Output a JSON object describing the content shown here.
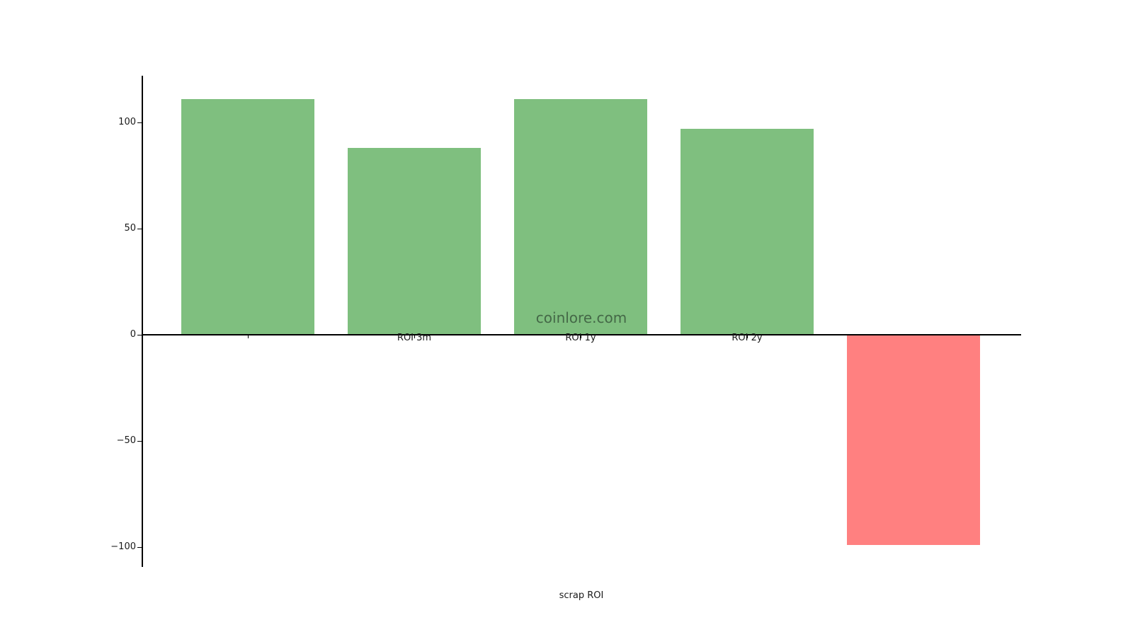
{
  "watermark": "coinlore.com",
  "chart_data": {
    "type": "bar",
    "title": "",
    "xlabel": "scrap ROI",
    "ylabel": "",
    "categories": [
      "",
      "ROI 3m",
      "ROI 1y",
      "ROI 2y",
      ""
    ],
    "values": [
      111,
      88,
      111,
      97,
      -99
    ],
    "bar_colors": [
      "#7fbf7f",
      "#7fbf7f",
      "#7fbf7f",
      "#7fbf7f",
      "#ff8080"
    ],
    "yticks": [
      {
        "value": 100,
        "label": "100"
      },
      {
        "value": 50,
        "label": "50"
      },
      {
        "value": 0,
        "label": "0"
      },
      {
        "value": -50,
        "label": "−50"
      },
      {
        "value": -100,
        "label": "−100"
      }
    ],
    "ylim": [
      -109,
      122
    ],
    "grid": false,
    "legend": null,
    "watermark": "coinlore.com",
    "colors": {
      "positive": "#7fbf7f",
      "negative": "#ff8080",
      "axis": "#000000",
      "tick_text": "#1a1a1a",
      "watermark_text": "#446847"
    }
  }
}
